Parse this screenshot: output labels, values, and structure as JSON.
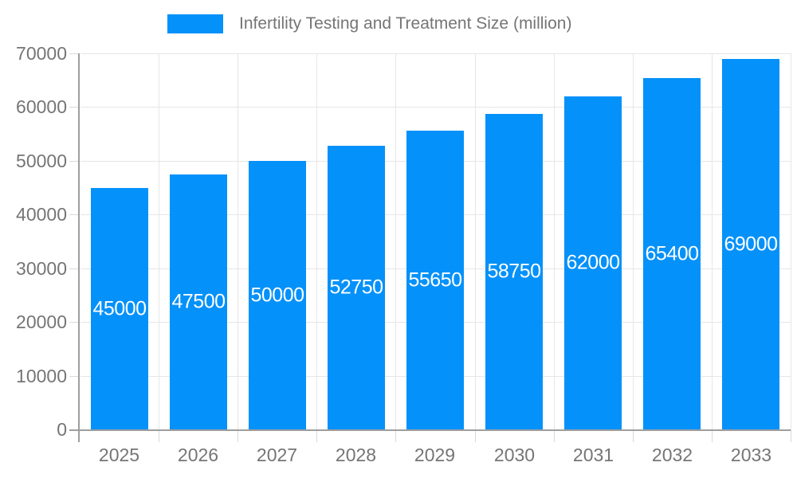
{
  "legend": {
    "label": "Infertility Testing and Treatment Size (million)"
  },
  "chart_data": {
    "type": "bar",
    "title": "Infertility Testing and Treatment Size (million)",
    "categories": [
      "2025",
      "2026",
      "2027",
      "2028",
      "2029",
      "2030",
      "2031",
      "2032",
      "2033"
    ],
    "values": [
      45000,
      47500,
      50000,
      52750,
      55650,
      58750,
      62000,
      65400,
      69000
    ],
    "value_labels": [
      "45000",
      "47500",
      "50000",
      "52750",
      "55650",
      "58750",
      "62000",
      "65400",
      "69000"
    ],
    "xlabel": "",
    "ylabel": "",
    "ylim": [
      0,
      70000
    ],
    "ytick_step": 10000,
    "ytick_labels": [
      "0",
      "10000",
      "20000",
      "30000",
      "40000",
      "50000",
      "60000",
      "70000"
    ],
    "grid": true,
    "legend_position": "top",
    "colors": {
      "bar": "#0591fa",
      "bar_label": "#ffffff",
      "axis_text": "#757575",
      "grid": "#e6e6e6",
      "tick": "#d9d9d9",
      "axis_line": "#9e9e9e",
      "background": "#ffffff"
    }
  }
}
